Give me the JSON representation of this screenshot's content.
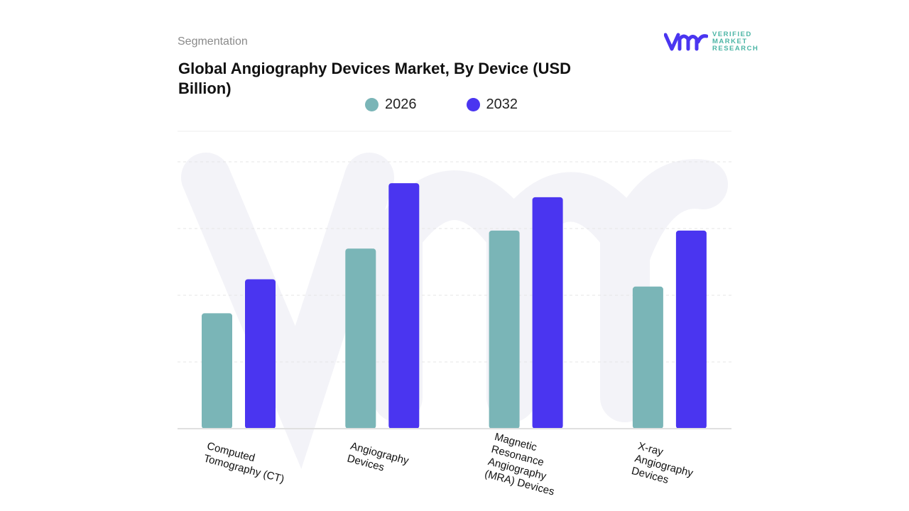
{
  "header": {
    "segment_label": "Segmentation",
    "title": " Global Angiography Devices Market, By Device (USD Billion)"
  },
  "logo": {
    "text_lines": [
      "VERIFIED",
      "MARKET",
      "RESEARCH"
    ],
    "icon": "vmr-logo-icon"
  },
  "chart_data": {
    "type": "bar",
    "title": " Global Angiography Devices Market, By Device (USD Billion)",
    "categories": [
      "Computed Tomography (CT)",
      "Angiography Devices",
      "Magnetic Resonance Angiography (MRA) Devices",
      "X-ray Angiography Devices"
    ],
    "category_label_lines": [
      [
        "Computed",
        "Tomography (CT)"
      ],
      [
        "Angiography",
        "Devices"
      ],
      [
        "Magnetic",
        "Resonance",
        "Angiography",
        "(MRA) Devices"
      ],
      [
        "X-ray",
        "Angiography",
        "Devices"
      ]
    ],
    "series": [
      {
        "name": "2026",
        "color": "#7ab5b7",
        "values": [
          1.73,
          2.7,
          2.97,
          2.13
        ]
      },
      {
        "name": "2032",
        "color": "#4a35f0",
        "values": [
          2.24,
          3.68,
          3.47,
          2.97
        ]
      }
    ],
    "ylim": [
      0,
      4
    ],
    "y_axis_labels_shown": false,
    "grid": true,
    "legend_placement": "top-center",
    "xlabel": "",
    "ylabel": ""
  }
}
